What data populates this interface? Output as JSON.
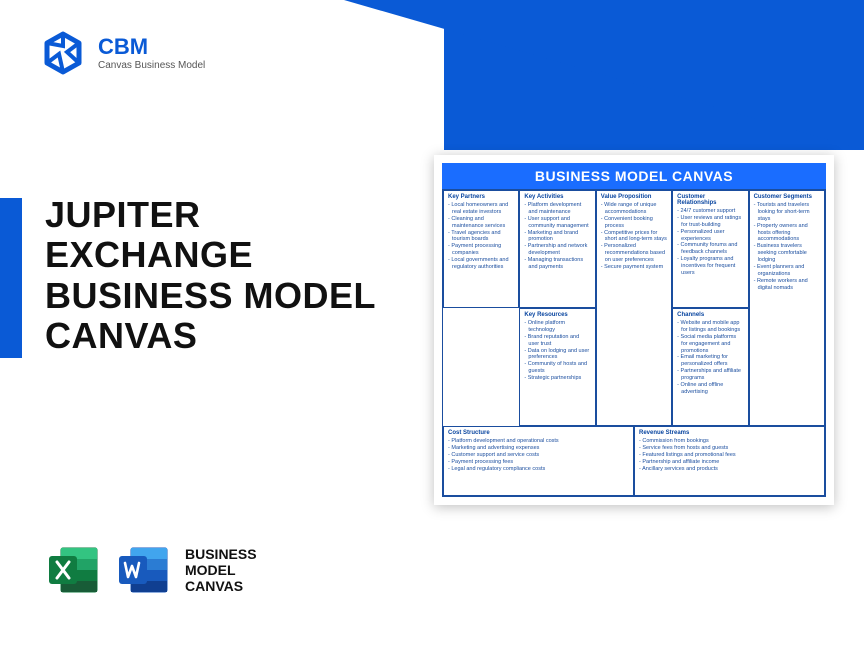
{
  "brand": {
    "name": "CBM",
    "tagline": "Canvas Business Model"
  },
  "title": {
    "l1": "JUPITER",
    "l2": "EXCHANGE",
    "l3": "BUSINESS MODEL",
    "l4": "CANVAS"
  },
  "footer": {
    "l1": "BUSINESS",
    "l2": "MODEL",
    "l3": "CANVAS"
  },
  "colors": {
    "primary": "#0a5ad6",
    "canvas_header": "#1a6dff",
    "canvas_border": "#1a4d9e",
    "excel_dark": "#185c37",
    "excel_light": "#21a366",
    "word_dark": "#103f91",
    "word_light": "#2b7cd3"
  },
  "canvas": {
    "header": "BUSINESS MODEL CANVAS",
    "sections": {
      "key_partners": {
        "title": "Key Partners",
        "items": [
          "Local homeowners and real estate investors",
          "Cleaning and maintenance services",
          "Travel agencies and tourism boards",
          "Payment processing companies",
          "Local governments and regulatory authorities"
        ]
      },
      "key_activities": {
        "title": "Key Activities",
        "items": [
          "Platform development and maintenance",
          "User support and community management",
          "Marketing and brand promotion",
          "Partnership and network development",
          "Managing transactions and payments"
        ]
      },
      "key_resources": {
        "title": "Key Resources",
        "items": [
          "Online platform technology",
          "Brand reputation and user trust",
          "Data on lodging and user preferences",
          "Community of hosts and guests",
          "Strategic partnerships"
        ]
      },
      "value_proposition": {
        "title": "Value Proposition",
        "items": [
          "Wide range of unique accommodations",
          "Convenient booking process",
          "Competitive prices for short and long-term stays",
          "Personalized recommendations based on user preferences",
          "Secure payment system"
        ]
      },
      "customer_relationships": {
        "title": "Customer Relationships",
        "items": [
          "24/7 customer support",
          "User reviews and ratings for trust-building",
          "Personalized user experiences",
          "Community forums and feedback channels",
          "Loyalty programs and incentives for frequent users"
        ]
      },
      "channels": {
        "title": "Channels",
        "items": [
          "Website and mobile app for listings and bookings",
          "Social media platforms for engagement and promotions",
          "Email marketing for personalized offers",
          "Partnerships and affiliate programs",
          "Online and offline advertising"
        ]
      },
      "customer_segments": {
        "title": "Customer Segments",
        "items": [
          "Tourists and travelers looking for short-term stays",
          "Property owners and hosts offering accommodations",
          "Business travelers seeking comfortable lodging",
          "Event planners and organizations",
          "Remote workers and digital nomads"
        ]
      },
      "cost_structure": {
        "title": "Cost Structure",
        "items": [
          "Platform development and operational costs",
          "Marketing and advertising expenses",
          "Customer support and service costs",
          "Payment processing fees",
          "Legal and regulatory compliance costs"
        ]
      },
      "revenue_streams": {
        "title": "Revenue Streams",
        "items": [
          "Commission from bookings",
          "Service fees from hosts and guests",
          "Featured listings and promotional fees",
          "Partnership and affiliate income",
          "Ancillary services and products"
        ]
      }
    }
  }
}
